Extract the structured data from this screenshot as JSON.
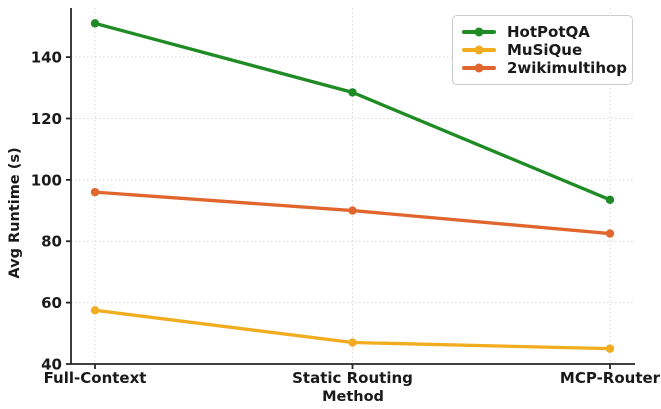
{
  "figure": {
    "xlabel": "Method",
    "ylabel": "Avg Runtime (s)"
  },
  "chart_data": {
    "type": "line",
    "title": "",
    "xlabel": "Method",
    "ylabel": "Avg Runtime (s)",
    "categories": [
      "Full-Context",
      "Static Routing",
      "MCP-Router"
    ],
    "series": [
      {
        "name": "HotPotQA",
        "color": "#1f8b24",
        "values": [
          151.0,
          128.5,
          93.5
        ]
      },
      {
        "name": "MuSiQue",
        "color": "#f2ac1f",
        "values": [
          57.5,
          47.0,
          45.0
        ]
      },
      {
        "name": "2wikimultihop",
        "color": "#e0662e",
        "values": [
          96.0,
          90.0,
          82.5
        ]
      }
    ],
    "ylim": [
      40,
      156
    ],
    "yticks": [
      40,
      60,
      80,
      100,
      120,
      140
    ],
    "grid": true,
    "grid_style": "dotted",
    "legend_position": "upper right",
    "colors": {
      "axis": "#262626",
      "gridline": "#d9d9d9",
      "text": "#1a1a1a",
      "legend_border": "#cccccc",
      "background": "#ffffff"
    }
  }
}
